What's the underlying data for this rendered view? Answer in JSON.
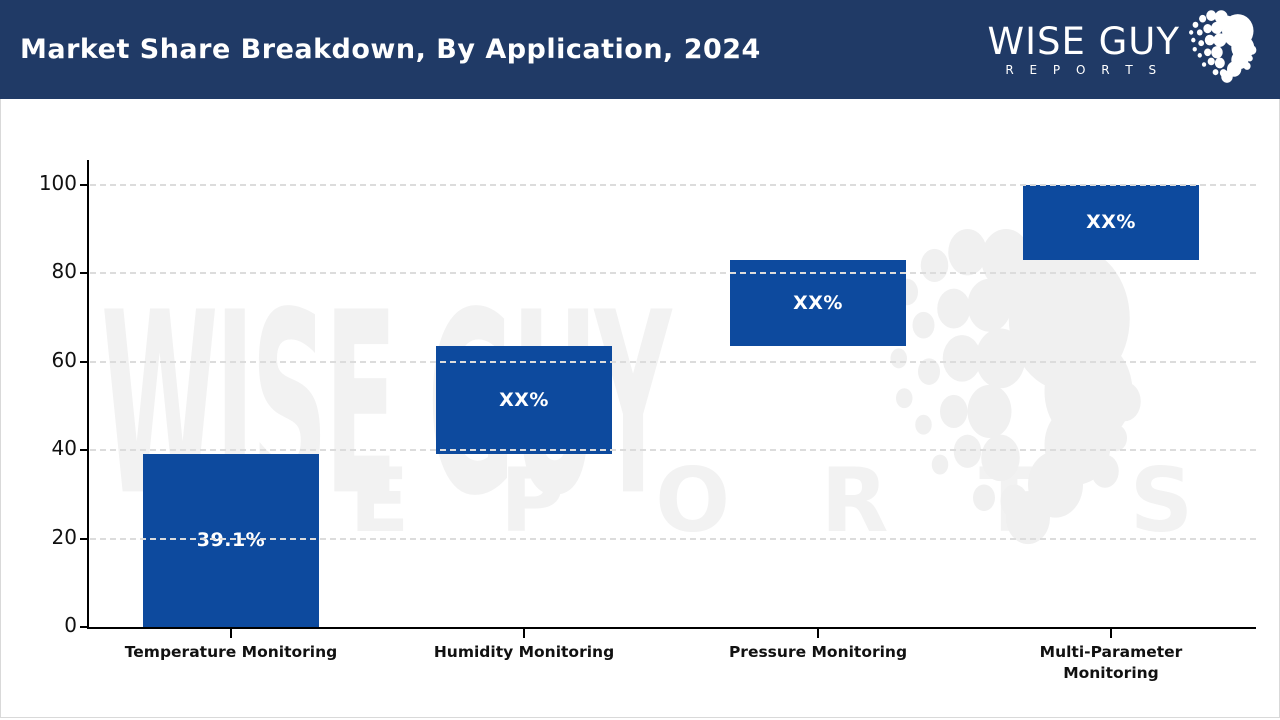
{
  "header": {
    "title": "Market Share Breakdown, By Application, 2024",
    "brand_line1": "WISE GUY",
    "brand_line2": "R E P O R T S"
  },
  "watermark": {
    "line1": "WISE GUY",
    "line2": "R E P O R T S"
  },
  "colors": {
    "header_bg": "#203a66",
    "bar": "#0d4a9e",
    "bar_label": "#ffffff",
    "grid": "#dcdcdc",
    "axis": "#000000",
    "tick_label": "#111111",
    "watermark": "#f2f2f2",
    "frame_border": "#d9d9d9"
  },
  "chart_data": {
    "type": "bar",
    "subtype": "floating-waterfall",
    "title": "Market Share Breakdown, By Application, 2024",
    "categories": [
      "Temperature Monitoring",
      "Humidity Monitoring",
      "Pressure Monitoring",
      "Multi-Parameter Monitoring"
    ],
    "series": [
      {
        "name": "Market share (%)",
        "segments": [
          {
            "category": "Temperature Monitoring",
            "start": 0,
            "end": 39.1,
            "label": "39.1%"
          },
          {
            "category": "Humidity Monitoring",
            "start": 39.1,
            "end": 63.5,
            "label": "XX%"
          },
          {
            "category": "Pressure Monitoring",
            "start": 63.5,
            "end": 82.9,
            "label": "XX%"
          },
          {
            "category": "Multi-Parameter Monitoring",
            "start": 82.9,
            "end": 100,
            "label": "XX%"
          }
        ]
      }
    ],
    "xlabel": "",
    "ylabel": "",
    "ylim": [
      0,
      100
    ],
    "yticks": [
      0,
      20,
      40,
      60,
      80,
      100
    ],
    "grid": "horizontal-dashed",
    "legend": "none"
  }
}
